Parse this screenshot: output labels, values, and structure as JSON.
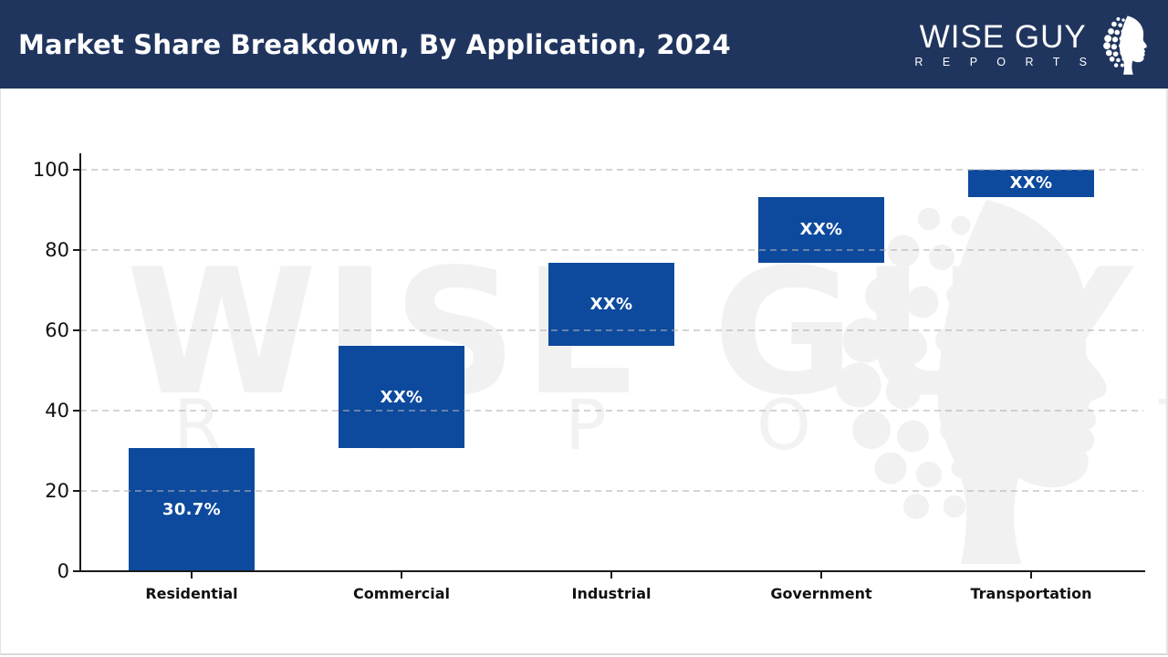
{
  "header": {
    "title": "Market Share Breakdown, By Application, 2024",
    "bg_color": "#20355E",
    "logo": {
      "line1": "WISE GUY",
      "line2": "R E P O R T S"
    }
  },
  "watermark": {
    "line1": "WISE GUY",
    "line2": "R E P O R T S"
  },
  "chart_data": {
    "type": "bar",
    "subtype": "waterfall",
    "title": "Market Share Breakdown, By Application, 2024",
    "xlabel": "",
    "ylabel": "",
    "ylim": [
      0,
      100
    ],
    "yticks": [
      0,
      20,
      40,
      60,
      80,
      100
    ],
    "grid": "horizontal-dashed-over-bars",
    "legend": "none",
    "bar_color": "#0D4A9E",
    "value_label_color": "#ffffff",
    "categories": [
      "Residential",
      "Commercial",
      "Industrial",
      "Government",
      "Transportation"
    ],
    "bars": [
      {
        "category": "Residential",
        "start": 0,
        "end": 30.7,
        "label": "30.7%"
      },
      {
        "category": "Commercial",
        "start": 30.7,
        "end": 56.1,
        "label": "XX%"
      },
      {
        "category": "Industrial",
        "start": 56.1,
        "end": 76.8,
        "label": "XX%"
      },
      {
        "category": "Government",
        "start": 76.8,
        "end": 93.2,
        "label": "XX%"
      },
      {
        "category": "Transportation",
        "start": 93.2,
        "end": 100,
        "label": "XX%"
      }
    ]
  }
}
